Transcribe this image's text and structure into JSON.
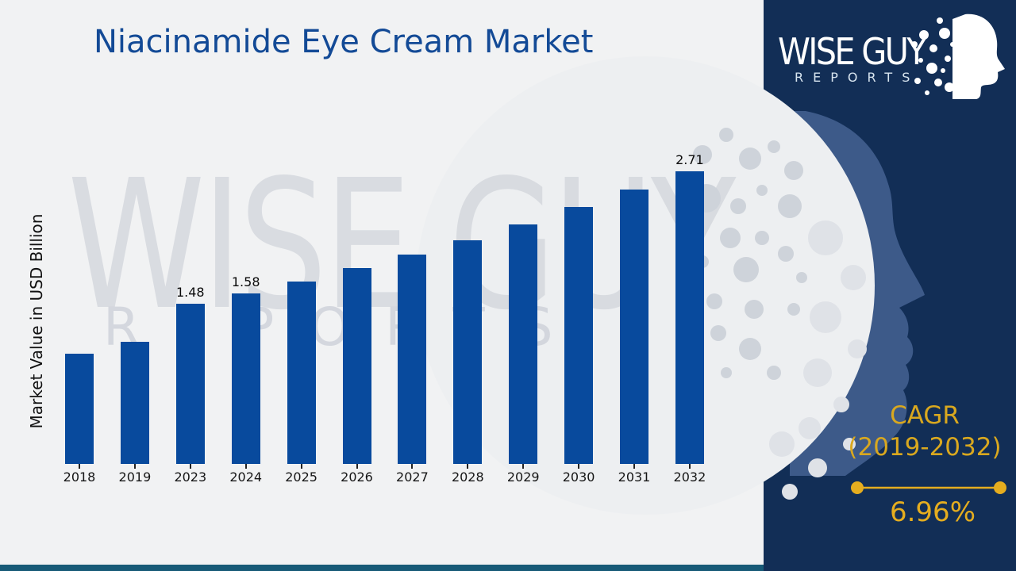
{
  "title": "Niacinamide Eye Cream Market",
  "y_axis_label": "Market Value in USD Billion",
  "watermark": {
    "line1": "WISE GUY",
    "line2": "REPORTS"
  },
  "logo": {
    "brand": "WISE GUY",
    "sub": "REPORTS"
  },
  "cagr": {
    "heading": "CAGR",
    "range": "(2019-2032)",
    "value": "6.96%"
  },
  "chart_data": {
    "type": "bar",
    "title": "Niacinamide Eye Cream Market",
    "xlabel": "",
    "ylabel": "Market Value in USD Billion",
    "categories": [
      "2018",
      "2019",
      "2023",
      "2024",
      "2025",
      "2026",
      "2027",
      "2028",
      "2029",
      "2030",
      "2031",
      "2032"
    ],
    "values": [
      1.02,
      1.13,
      1.48,
      1.58,
      1.69,
      1.81,
      1.94,
      2.07,
      2.22,
      2.38,
      2.54,
      2.71
    ],
    "data_labels": {
      "2023": "1.48",
      "2024": "1.58",
      "2032": "2.71"
    },
    "ylim": [
      0,
      3.0
    ],
    "grid": false,
    "legend": false,
    "bar_color": "#084a9d"
  },
  "colors": {
    "bar": "#084a9d",
    "title_text": "#134a96",
    "navy_panel": "#122e56",
    "gold": "#d9a81f",
    "gold_bright": "#e5ad1f",
    "teal_strip": "#175a77",
    "face_silhouette": "#3d5a89"
  }
}
